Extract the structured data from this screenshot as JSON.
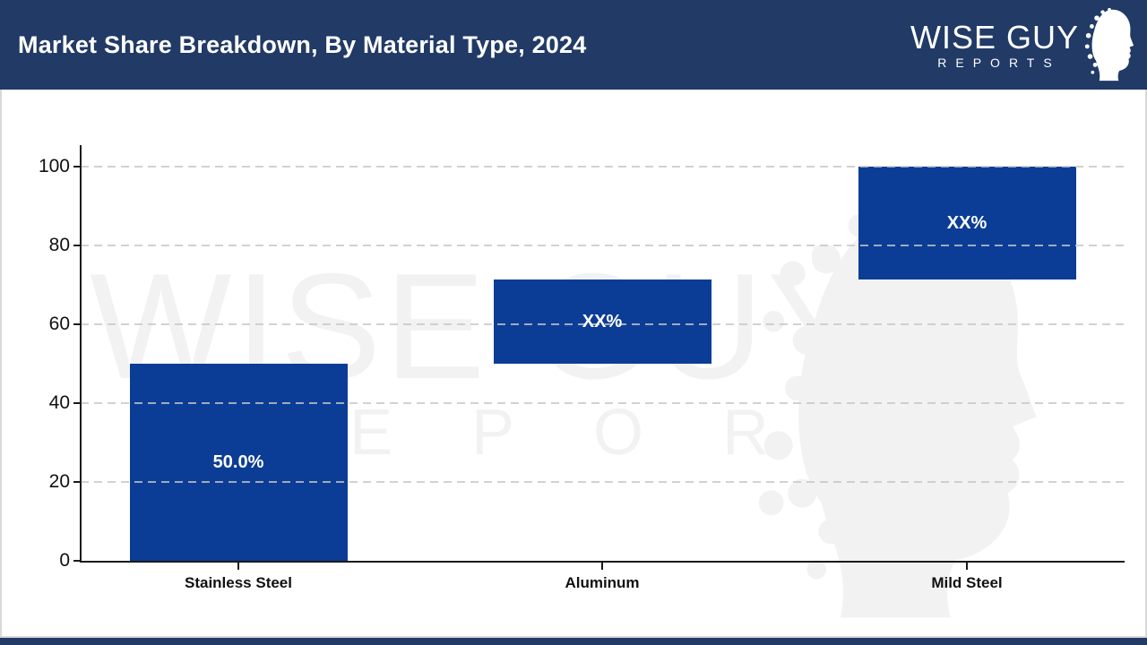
{
  "header": {
    "title": "Market Share Breakdown, By Material Type, 2024",
    "logo": {
      "name": "WISE GUY",
      "tagline": "REPORTS"
    }
  },
  "watermark": {
    "line1": "WISE GUY",
    "line2": "REPORTS"
  },
  "chart_data": {
    "type": "bar",
    "variant": "floating-waterfall",
    "title": "Market Share Breakdown, By Material Type, 2024",
    "categories": [
      "Stainless Steel",
      "Aluminum",
      "Mild Steel"
    ],
    "segments": [
      {
        "from": 0,
        "to": 50
      },
      {
        "from": 50,
        "to": 71.4
      },
      {
        "from": 71.4,
        "to": 100
      }
    ],
    "values": [
      50.0,
      21.4,
      28.6
    ],
    "bar_labels": [
      "50.0%",
      "XX%",
      "XX%"
    ],
    "yticks": [
      0,
      20,
      40,
      60,
      80,
      100
    ],
    "ylim": [
      0,
      105.5
    ],
    "xlabel": "",
    "ylabel": "",
    "legend": "none",
    "grid": "horizontal-dashed"
  },
  "colors": {
    "header_bg": "#213a66",
    "footer_bg": "#213a66",
    "bar": "#0b3d96",
    "bar_label": "#ffffff",
    "axis": "#1a1a1a",
    "grid_dash": "#c6c6c6",
    "watermark": "#f2f2f2",
    "frame": "#d8d8d8"
  }
}
